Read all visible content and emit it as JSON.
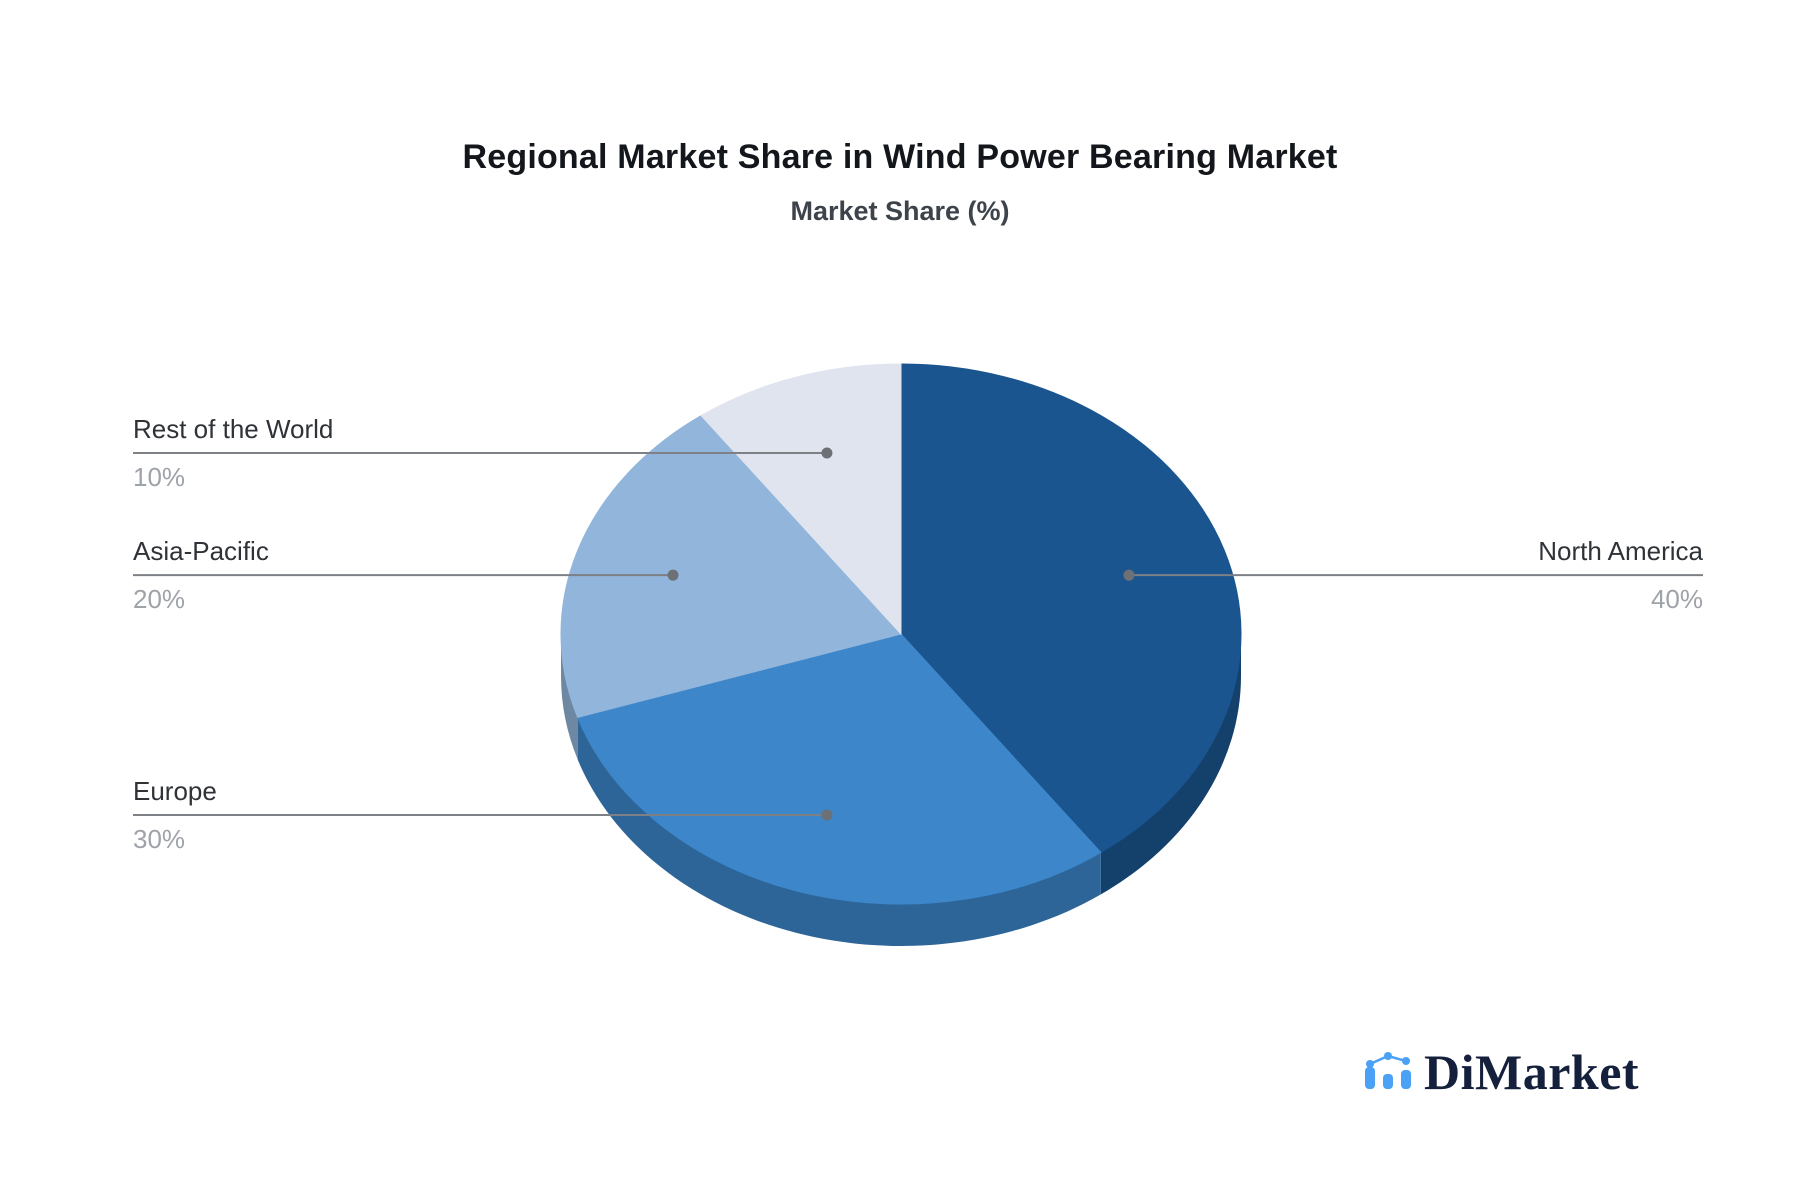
{
  "header": {
    "title": "Regional Market Share in Wind Power Bearing Market",
    "subtitle": "Market Share (%)"
  },
  "chart_data": {
    "type": "pie",
    "title": "Regional Market Share in Wind Power Bearing Market",
    "subtitle": "Market Share (%)",
    "unit": "%",
    "effect": "3d",
    "legend_position": "none",
    "label_style": "callout-lines",
    "slices": [
      {
        "label": "North America",
        "value": 40,
        "display_value": "40%",
        "color": "#1a5590"
      },
      {
        "label": "Europe",
        "value": 30,
        "display_value": "30%",
        "color": "#3d86ca"
      },
      {
        "label": "Asia-Pacific",
        "value": 20,
        "display_value": "20%",
        "color": "#92b5db"
      },
      {
        "label": "Rest of the World",
        "value": 10,
        "display_value": "10%",
        "color": "#dfe4ee"
      }
    ],
    "callout": {
      "line_color": "#7d8084",
      "dot_color": "#6d7074",
      "label_color": "#2f3338",
      "value_color": "#9ea3a9"
    }
  },
  "branding": {
    "logo_text": "DiMarket",
    "logo_icon": "bar-chart-icon",
    "logo_text_color": "#15203c",
    "logo_icon_color": "#4aa1f6"
  }
}
